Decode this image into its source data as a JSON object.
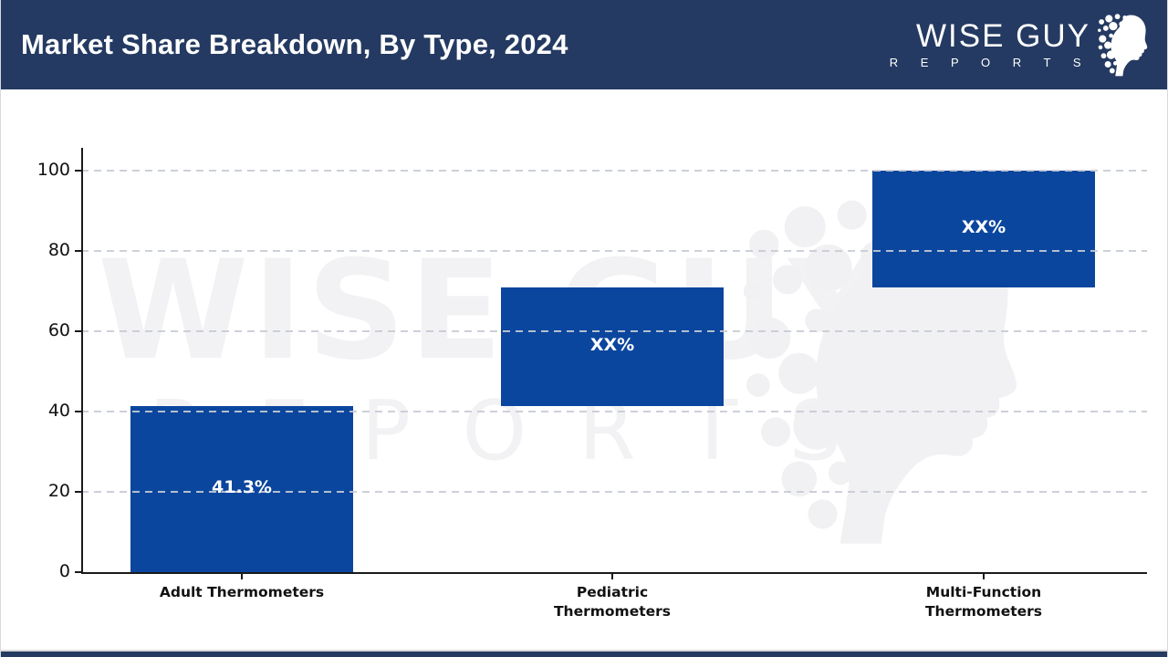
{
  "header": {
    "title": "Market Share Breakdown, By Type, 2024",
    "brand": {
      "name_line1": "WISE GUY",
      "name_line2": "R E P O R T S"
    },
    "bg_color": "#243a62"
  },
  "watermark": {
    "line1": "WISE GUY",
    "line2": "R E P O R T S"
  },
  "chart_data": {
    "type": "bar",
    "subtype": "stacked-waterfall",
    "title": "Market Share Breakdown, By Type, 2024",
    "categories": [
      "Adult Thermometers",
      "Pediatric\nThermometers",
      "Multi-Function\nThermometers"
    ],
    "segments": [
      {
        "category": "Adult Thermometers",
        "label": "41.3%",
        "start": 0,
        "end": 41.3
      },
      {
        "category": "Pediatric Thermometers",
        "label": "XX%",
        "start": 41.3,
        "end": 70.9
      },
      {
        "category": "Multi-Function Thermometers",
        "label": "XX%",
        "start": 70.9,
        "end": 100
      }
    ],
    "ylim": [
      0,
      100
    ],
    "yticks": [
      0,
      20,
      40,
      60,
      80,
      100
    ],
    "grid": "dashed horizontal, drawn over bars",
    "bar_color": "#0b469e",
    "bar_label_color": "#ffffff",
    "xlabel": "",
    "ylabel": "",
    "legend": "none"
  }
}
